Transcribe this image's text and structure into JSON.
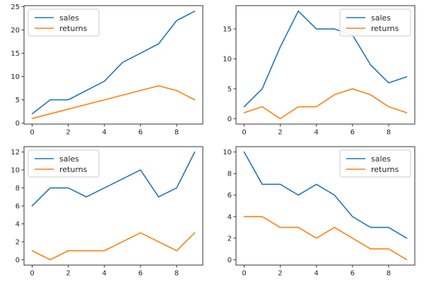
{
  "figure": {
    "background": "#ffffff",
    "text_color": "#262626",
    "axis_color": "#333333",
    "legend_border_color": "#cccccc",
    "legend_background": "#ffffff",
    "series_colors": {
      "sales": "#1f77b4",
      "returns": "#ff7f0e"
    },
    "legend_labels": [
      "sales",
      "returns"
    ]
  },
  "chart_data": [
    {
      "type": "line",
      "position": "top-left",
      "title": "",
      "xlabel": "",
      "ylabel": "",
      "x": [
        0,
        1,
        2,
        3,
        4,
        5,
        6,
        7,
        8,
        9
      ],
      "series": [
        {
          "name": "sales",
          "color": "#1f77b4",
          "values": [
            2,
            5,
            5,
            7,
            9,
            13,
            15,
            17,
            22,
            24
          ]
        },
        {
          "name": "returns",
          "color": "#ff7f0e",
          "values": [
            1,
            2,
            3,
            4,
            5,
            6,
            7,
            8,
            7,
            5
          ]
        }
      ],
      "xticks": [
        0,
        2,
        4,
        6,
        8
      ],
      "yticks": [
        0,
        5,
        10,
        15,
        20,
        25
      ],
      "xlim": [
        -0.45,
        9.45
      ],
      "ylim": [
        -0.2,
        25.2
      ],
      "grid": false,
      "legend_loc": "upper-left"
    },
    {
      "type": "line",
      "position": "top-right",
      "title": "",
      "xlabel": "",
      "ylabel": "",
      "x": [
        0,
        1,
        2,
        3,
        4,
        5,
        6,
        7,
        8,
        9
      ],
      "series": [
        {
          "name": "sales",
          "color": "#1f77b4",
          "values": [
            2,
            5,
            12,
            18,
            15,
            15,
            14,
            9,
            6,
            7
          ]
        },
        {
          "name": "returns",
          "color": "#ff7f0e",
          "values": [
            1,
            2,
            0,
            2,
            2,
            4,
            5,
            4,
            2,
            1
          ]
        }
      ],
      "xticks": [
        0,
        2,
        4,
        6,
        8
      ],
      "yticks": [
        0,
        5,
        10,
        15
      ],
      "xlim": [
        -0.45,
        9.45
      ],
      "ylim": [
        -0.9,
        18.9
      ],
      "grid": false,
      "legend_loc": "upper-right"
    },
    {
      "type": "line",
      "position": "bottom-left",
      "title": "",
      "xlabel": "",
      "ylabel": "",
      "x": [
        0,
        1,
        2,
        3,
        4,
        5,
        6,
        7,
        8,
        9
      ],
      "series": [
        {
          "name": "sales",
          "color": "#1f77b4",
          "values": [
            6,
            8,
            8,
            7,
            8,
            9,
            10,
            7,
            8,
            12
          ]
        },
        {
          "name": "returns",
          "color": "#ff7f0e",
          "values": [
            1,
            0,
            1,
            1,
            1,
            2,
            3,
            2,
            1,
            3
          ]
        }
      ],
      "xticks": [
        0,
        2,
        4,
        6,
        8
      ],
      "yticks": [
        0,
        2,
        4,
        6,
        8,
        10,
        12
      ],
      "xlim": [
        -0.45,
        9.45
      ],
      "ylim": [
        -0.6,
        12.6
      ],
      "grid": false,
      "legend_loc": "upper-left"
    },
    {
      "type": "line",
      "position": "bottom-right",
      "title": "",
      "xlabel": "",
      "ylabel": "",
      "x": [
        0,
        1,
        2,
        3,
        4,
        5,
        6,
        7,
        8,
        9
      ],
      "series": [
        {
          "name": "sales",
          "color": "#1f77b4",
          "values": [
            10,
            7,
            7,
            6,
            7,
            6,
            4,
            3,
            3,
            2
          ]
        },
        {
          "name": "returns",
          "color": "#ff7f0e",
          "values": [
            4,
            4,
            3,
            3,
            2,
            3,
            2,
            1,
            1,
            0
          ]
        }
      ],
      "xticks": [
        0,
        2,
        4,
        6,
        8
      ],
      "yticks": [
        0,
        2,
        4,
        6,
        8,
        10
      ],
      "xlim": [
        -0.45,
        9.45
      ],
      "ylim": [
        -0.5,
        10.5
      ],
      "grid": false,
      "legend_loc": "upper-right"
    }
  ]
}
